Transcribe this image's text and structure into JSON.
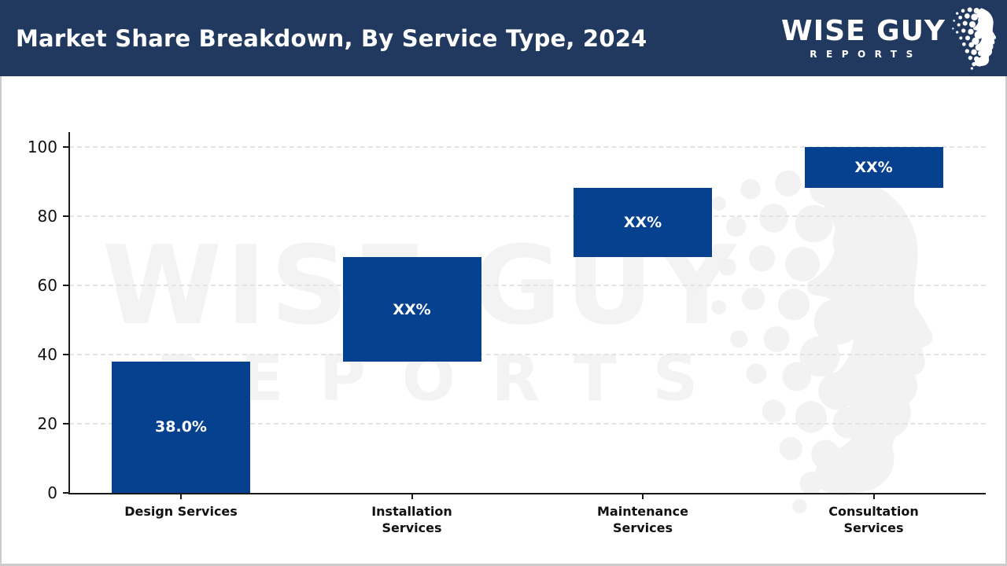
{
  "header": {
    "title": "Market Share Breakdown, By Service Type, 2024",
    "logo": {
      "line1": "WISE GUY",
      "line2": "REPORTS"
    }
  },
  "watermark": {
    "line1": "WISE GUY",
    "line2": "REPORTS"
  },
  "colors": {
    "header_bg": "#21395f",
    "bar_blue": "#05418f",
    "axis": "#1a1a1a",
    "gridline": "#e3e3e3",
    "watermark": "#f2f2f2"
  },
  "chart_data": {
    "type": "bar",
    "subtype": "waterfall",
    "title": "Market Share Breakdown, By Service Type, 2024",
    "categories": [
      "Design Services",
      "Installation\nServices",
      "Maintenance\nServices",
      "Consultation\nServices"
    ],
    "segments": [
      {
        "category": "Design Services",
        "start": 0,
        "end": 38,
        "value": 38,
        "label": "38.0%"
      },
      {
        "category": "Installation Services",
        "start": 38,
        "end": 68,
        "value": 30,
        "label": "XX%"
      },
      {
        "category": "Maintenance Services",
        "start": 68,
        "end": 88,
        "value": 20,
        "label": "XX%"
      },
      {
        "category": "Consultation Services",
        "start": 88,
        "end": 100,
        "value": 12,
        "label": "XX%"
      }
    ],
    "yticks": [
      0,
      20,
      40,
      60,
      80,
      100
    ],
    "ylim": [
      0,
      105
    ],
    "xlabel": "",
    "ylabel": "",
    "grid": "horizontal-dashed",
    "legend": "none",
    "bar_color": "#05418f",
    "bar_label_color": "#ffffff"
  }
}
